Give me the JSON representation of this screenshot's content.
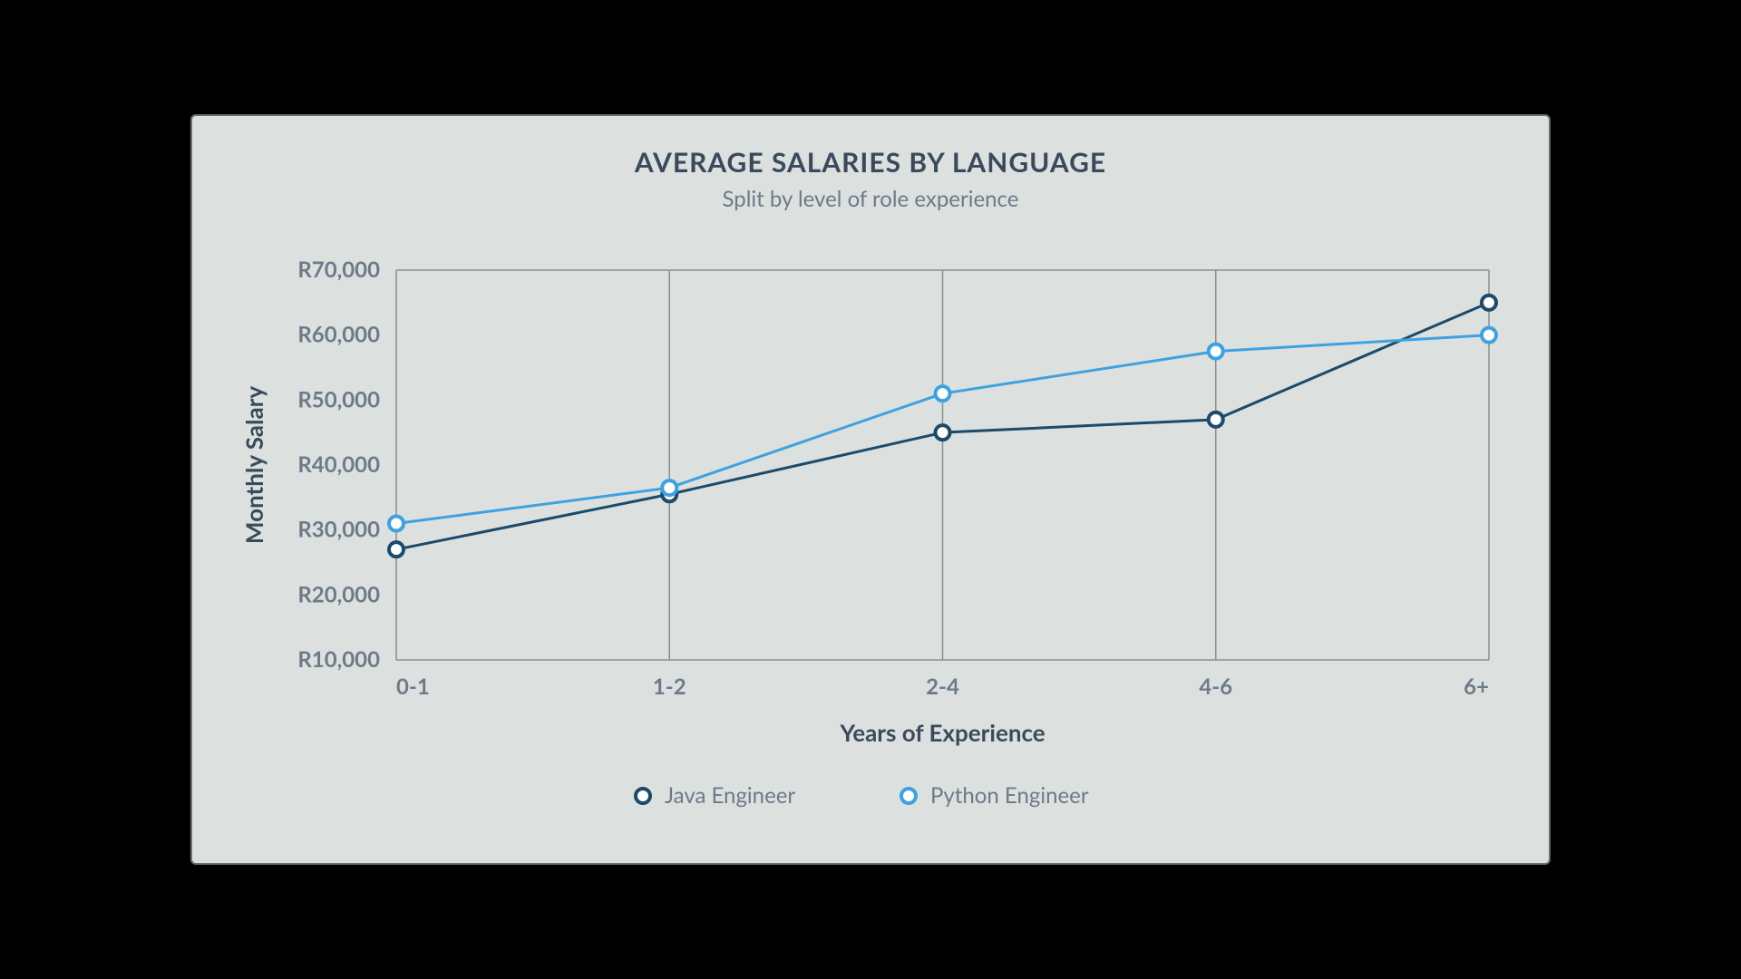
{
  "chart": {
    "type": "line",
    "title": "AVERAGE SALARIES BY LANGUAGE",
    "subtitle": "Split by level of role experience",
    "x_axis": {
      "title": "Years of Experience",
      "categories": [
        "0-1",
        "1-2",
        "2-4",
        "4-6",
        "6+"
      ]
    },
    "y_axis": {
      "title": "Monthly Salary",
      "min": 10000,
      "max": 70000,
      "tick_step": 10000,
      "tick_labels": [
        "R10,000",
        "R20,000",
        "R30,000",
        "R40,000",
        "R50,000",
        "R60,000",
        "R70,000"
      ]
    },
    "series": [
      {
        "name": "Java Engineer",
        "color": "#1b4a6b",
        "marker_fill": "#ffffff",
        "marker_stroke": "#1b4a6b",
        "line_width": 3,
        "marker_radius": 8,
        "marker_stroke_width": 4,
        "values": [
          27000,
          35500,
          45000,
          47000,
          65000
        ]
      },
      {
        "name": "Python Engineer",
        "color": "#3fa1e0",
        "marker_fill": "#ffffff",
        "marker_stroke": "#3fa1e0",
        "line_width": 3,
        "marker_radius": 8,
        "marker_stroke_width": 4,
        "values": [
          31000,
          36500,
          51000,
          57500,
          60000
        ]
      }
    ],
    "layout": {
      "panel_bg": "#dce1e0",
      "grid_color": "#8a8f8e",
      "grid_width": 1.5,
      "title_fontsize": 30,
      "subtitle_fontsize": 24,
      "axis_title_fontsize": 26,
      "tick_fontsize": 24,
      "legend_fontsize": 24,
      "title_color": "#3b4a5a",
      "subtitle_color": "#6d7a87",
      "tick_color": "#6d7a87"
    }
  }
}
